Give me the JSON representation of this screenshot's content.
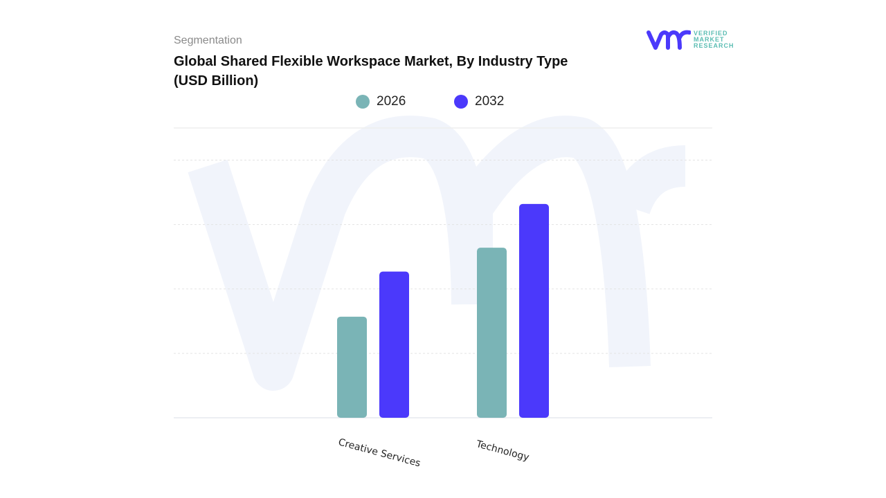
{
  "header": {
    "segment_label": "Segmentation",
    "title": "Global Shared Flexible Workspace Market, By Industry Type (USD Billion)"
  },
  "logo": {
    "mark": "vmr",
    "lines": [
      "VERIFIED",
      "MARKET",
      "RESEARCH"
    ]
  },
  "colors": {
    "s2026": "#7ab4b6",
    "s2032": "#4b39fb",
    "watermark": "#f1f4fb",
    "grid": "#e3e3e3"
  },
  "chart_data": {
    "type": "bar",
    "title": "Global Shared Flexible Workspace Market, By Industry Type (USD Billion)",
    "categories": [
      "Creative Services",
      "Technology"
    ],
    "series": [
      {
        "name": "2026",
        "values": [
          1.57,
          2.64
        ]
      },
      {
        "name": "2032",
        "values": [
          2.27,
          3.32
        ]
      }
    ],
    "ylim": [
      0,
      4.5
    ],
    "grid": true,
    "legend": "top-center",
    "xlabel": "",
    "ylabel": ""
  }
}
